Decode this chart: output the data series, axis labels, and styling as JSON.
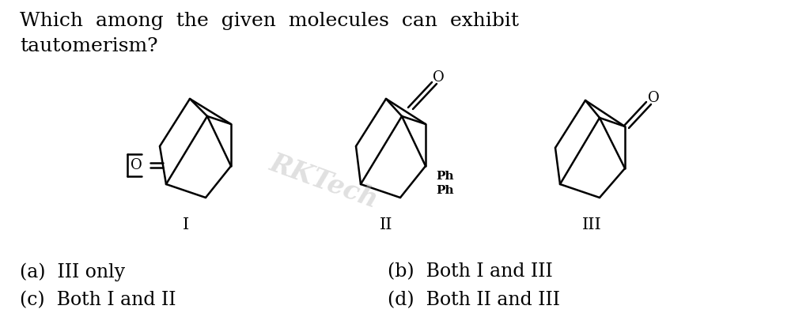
{
  "title_line1": "Which  among  the  given  molecules  can  exhibit",
  "title_line2": "tautomerism?",
  "answer_a": "(a)  III only",
  "answer_b": "(b)  Both I and III",
  "answer_c": "(c)  Both I and II",
  "answer_d": "(d)  Both II and III",
  "label_I": "I",
  "label_II": "II",
  "label_III": "III",
  "watermark": "RKTech",
  "bg_color": "#ffffff",
  "text_color": "#000000",
  "font_size_title": 18,
  "font_size_options": 17,
  "font_size_labels": 15
}
